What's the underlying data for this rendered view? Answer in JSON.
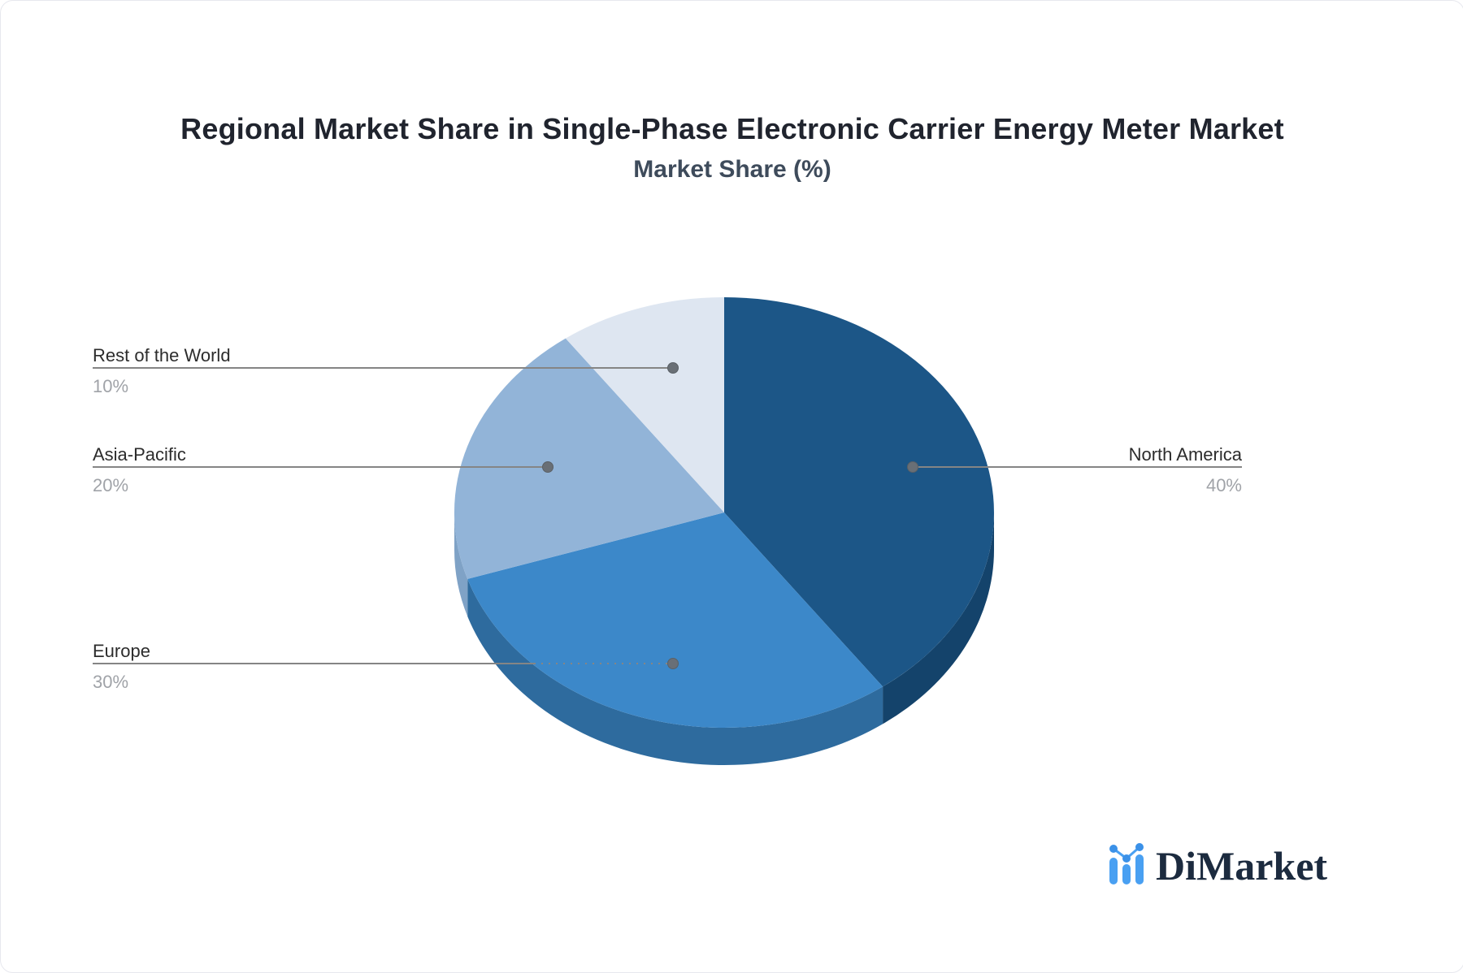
{
  "chart_data": {
    "type": "pie",
    "style": "3d",
    "title": "Regional Market Share in Single-Phase Electronic Carrier Energy Meter Market",
    "subtitle": "Market Share (%)",
    "unit": "%",
    "direction": "clockwise",
    "start_angle_deg": 0,
    "legend": "none",
    "label_layout": "callout-lines",
    "labels": [
      "North America",
      "Europe",
      "Asia-Pacific",
      "Rest of the World"
    ],
    "values": [
      40,
      30,
      20,
      10
    ],
    "value_labels": [
      "40%",
      "30%",
      "20%",
      "10%"
    ],
    "colors": [
      "#1c5687",
      "#3c88c9",
      "#92b4d8",
      "#dee6f1"
    ],
    "side_colors": [
      "#14436b",
      "#2e6b9e",
      "#7fa2c6",
      "#c9d3e2"
    ],
    "callout_line_color": "#858585",
    "callout_dot_color": "#696f76"
  },
  "branding": {
    "logo_text": "DiMarket",
    "logo_icon": "bar-chart-trend-icon",
    "logo_text_color": "#1c2b3f",
    "logo_accent_color": "#49a0f2"
  }
}
